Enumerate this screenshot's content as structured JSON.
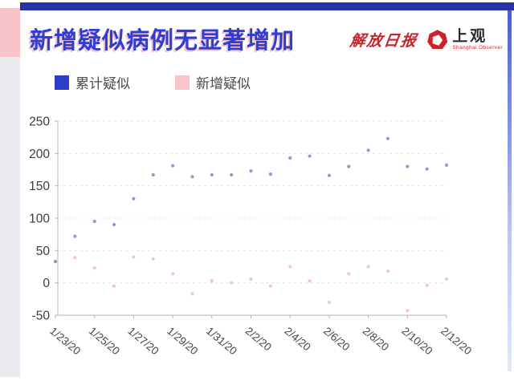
{
  "header": {
    "title": "新增疑似病例无显著增加"
  },
  "brand": {
    "jiefang_daily": "解放日报",
    "shobserver_cn": "上观",
    "shobserver_en": "Shanghai Observer"
  },
  "colors": {
    "top_bar_navy": "#2733a8",
    "title_blue": "#2e3ed0",
    "title_shadow_pink": "#f3becf",
    "accent_pink_block": "#f8c4ca",
    "brand_red": "#c5232b",
    "cumulative_blue": "#2b3fca",
    "new_pink": "#f9c4ca",
    "cumulative_dot": "rgba(122,136,210,0.85)",
    "new_dot": "rgba(236,172,182,0.7)",
    "gridline": "#e4e4e8",
    "axis": "#b3b3ba",
    "tick_text": "#3c3c40"
  },
  "legend": [
    {
      "label": "累计疑似",
      "color": "#2b3fca"
    },
    {
      "label": "新增疑似",
      "color": "#f9c4ca"
    }
  ],
  "chart_data": {
    "type": "scatter",
    "title": "新增疑似病例无显著增加",
    "x": [
      "1/23/20",
      "1/24/20",
      "1/25/20",
      "1/26/20",
      "1/27/20",
      "1/28/20",
      "1/29/20",
      "1/30/20",
      "1/31/20",
      "2/1/20",
      "2/2/20",
      "2/3/20",
      "2/4/20",
      "2/5/20",
      "2/6/20",
      "2/7/20",
      "2/8/20",
      "2/9/20",
      "2/10/20",
      "2/11/20",
      "2/12/20"
    ],
    "x_tick_labels": [
      "1/23/20",
      "1/25/20",
      "1/27/20",
      "1/29/20",
      "1/31/20",
      "2/2/20",
      "2/4/20",
      "2/6/20",
      "2/8/20",
      "2/10/20",
      "2/12/20"
    ],
    "series": [
      {
        "name": "累计疑似",
        "values": [
          33,
          72,
          95,
          90,
          130,
          167,
          181,
          164,
          167,
          167,
          173,
          168,
          193,
          196,
          166,
          180,
          205,
          223,
          180,
          176,
          182
        ]
      },
      {
        "name": "新增疑似",
        "values": [
          33,
          39,
          23,
          -5,
          40,
          37,
          14,
          -17,
          3,
          0,
          6,
          -5,
          25,
          3,
          -30,
          14,
          25,
          18,
          -43,
          -4,
          6
        ]
      }
    ],
    "xlabel": "",
    "ylabel": "",
    "ylim": [
      -50,
      250
    ],
    "yticks": [
      -50,
      0,
      50,
      100,
      150,
      200,
      250
    ],
    "grid": true,
    "grid_style": "dashed",
    "legend_position": "top-left",
    "marker": "dot"
  }
}
